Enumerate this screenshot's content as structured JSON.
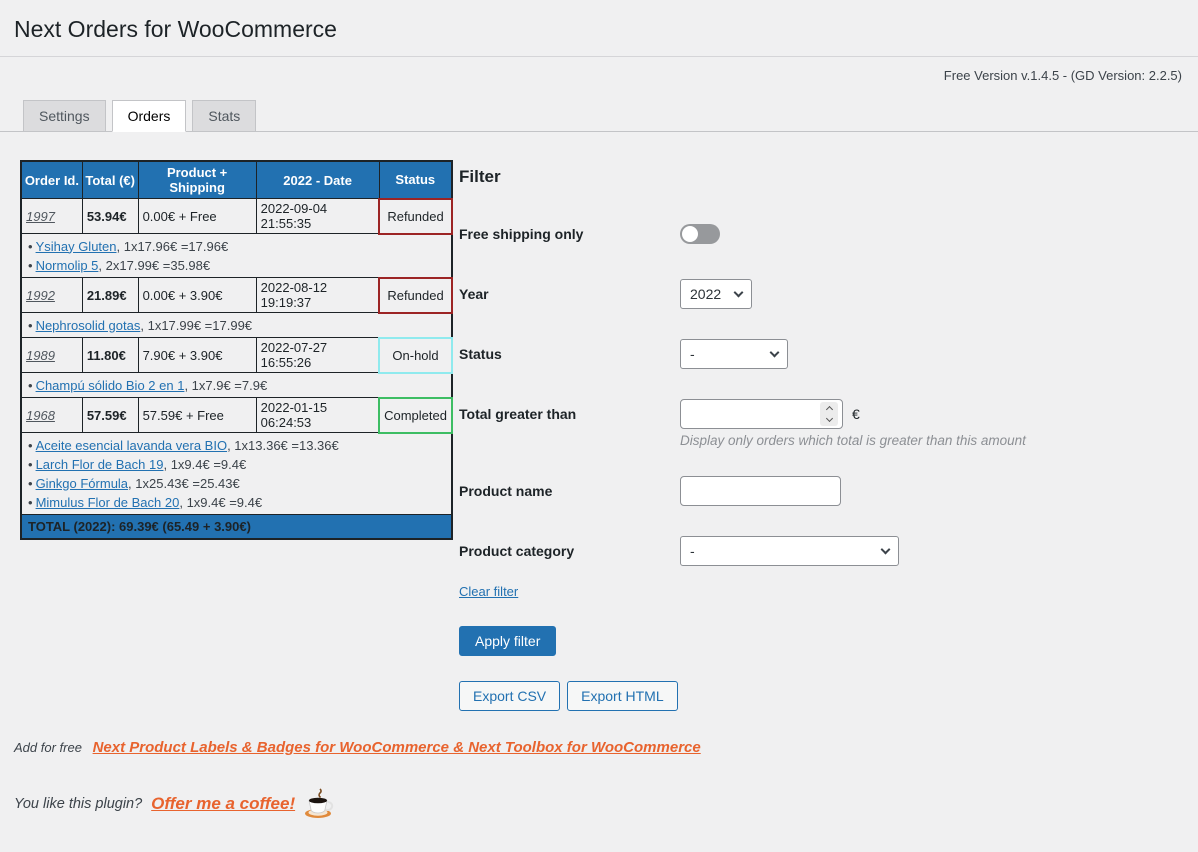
{
  "page": {
    "title": "Next Orders for WooCommerce",
    "version_text": "Free Version v.1.4.5 - (GD Version: 2.2.5)"
  },
  "tabs": [
    {
      "label": "Settings",
      "active": false
    },
    {
      "label": "Orders",
      "active": true
    },
    {
      "label": "Stats",
      "active": false
    }
  ],
  "orders_table": {
    "headers": [
      "Order Id.",
      "Total (€)",
      "Product + Shipping",
      "2022 - Date",
      "Status"
    ],
    "rows": [
      {
        "order_id": "1997",
        "total": "53.94€",
        "product_shipping": "0.00€ + Free",
        "date": "2022-09-04 21:55:35",
        "status": "Refunded",
        "status_type": "refunded",
        "products": [
          {
            "name": "Ysihay Gluten",
            "detail": ", 1x17.96€ =17.96€"
          },
          {
            "name": "Normolip 5",
            "detail": ", 2x17.99€ =35.98€"
          }
        ]
      },
      {
        "order_id": "1992",
        "total": "21.89€",
        "product_shipping": "0.00€ + 3.90€",
        "date": "2022-08-12 19:19:37",
        "status": "Refunded",
        "status_type": "refunded",
        "products": [
          {
            "name": "Nephrosolid gotas",
            "detail": ", 1x17.99€ =17.99€"
          }
        ]
      },
      {
        "order_id": "1989",
        "total": "11.80€",
        "product_shipping": "7.90€ + 3.90€",
        "date": "2022-07-27 16:55:26",
        "status": "On-hold",
        "status_type": "on-hold",
        "products": [
          {
            "name": "Champú sólido Bio 2 en 1",
            "detail": ", 1x7.9€ =7.9€"
          }
        ]
      },
      {
        "order_id": "1968",
        "total": "57.59€",
        "product_shipping": "57.59€ + Free",
        "date": "2022-01-15 06:24:53",
        "status": "Completed",
        "status_type": "completed",
        "products": [
          {
            "name": "Aceite esencial lavanda vera BIO",
            "detail": ", 1x13.36€ =13.36€"
          },
          {
            "name": "Larch Flor de Bach 19",
            "detail": ", 1x9.4€ =9.4€"
          },
          {
            "name": "Ginkgo Fórmula",
            "detail": ", 1x25.43€ =25.43€"
          },
          {
            "name": "Mimulus Flor de Bach 20",
            "detail": ", 1x9.4€ =9.4€"
          }
        ]
      }
    ],
    "total_row": "TOTAL (2022): 69.39€ (65.49 + 3.90€)"
  },
  "filter": {
    "heading": "Filter",
    "free_shipping_label": "Free shipping only",
    "free_shipping_on": false,
    "year_label": "Year",
    "year_value": "2022",
    "status_label": "Status",
    "status_value": "-",
    "total_greater_label": "Total greater than",
    "total_greater_value": "",
    "currency_suffix": "€",
    "total_hint": "Display only orders which total is greater than this amount",
    "product_name_label": "Product name",
    "product_name_value": "",
    "product_category_label": "Product category",
    "product_category_value": "-",
    "clear_filter_label": "Clear filter",
    "apply_button": "Apply filter",
    "export_csv_button": "Export CSV",
    "export_html_button": "Export HTML"
  },
  "footer": {
    "add_free_prefix": "Add for free",
    "add_free_link": "Next Product Labels & Badges for WooCommerce & Next Toolbox for WooCommerce",
    "coffee_prefix": "You like this plugin?",
    "coffee_link": "Offer me a coffee!",
    "coffee_icon": "coffee-cup-icon"
  },
  "colors": {
    "accent_blue": "#2271b1",
    "status_refunded": "#e02828",
    "status_on_hold": "#55e1e7",
    "status_completed": "#41dd7b",
    "link_orange": "#e8632e",
    "page_background": "#f0f0f1"
  }
}
